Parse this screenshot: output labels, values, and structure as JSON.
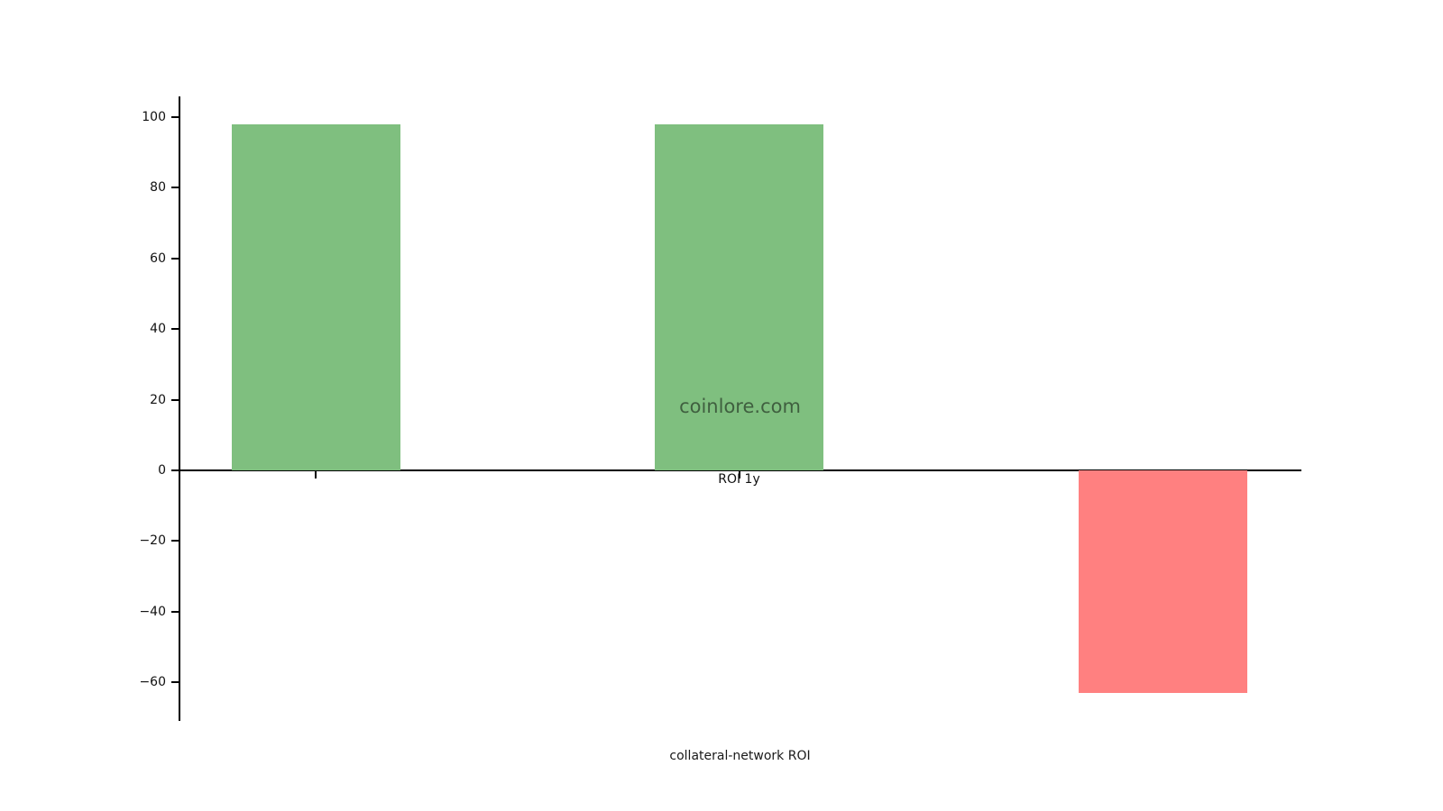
{
  "chart_data": {
    "type": "bar",
    "title": "collateral-network ROI",
    "watermark": "coinlore.com",
    "categories": [
      "",
      "ROI 1y",
      ""
    ],
    "values": [
      98,
      98,
      -63
    ],
    "xlabel": "",
    "ylabel": "",
    "ylim": [
      -71,
      106
    ],
    "yticks": [
      100,
      80,
      60,
      40,
      20,
      0,
      -20,
      -40,
      -60
    ],
    "ytick_labels": [
      "100",
      "80",
      "60",
      "40",
      "20",
      "0",
      "−20",
      "−40",
      "−60"
    ],
    "grid": false,
    "legend": false,
    "colors": {
      "positive_bar": "#7FBF7F",
      "negative_bar": "#FF8080",
      "axis": "#000000",
      "watermark_text": "rgba(0,0,0,0.5)",
      "title_text": "#1a1a1a"
    }
  }
}
